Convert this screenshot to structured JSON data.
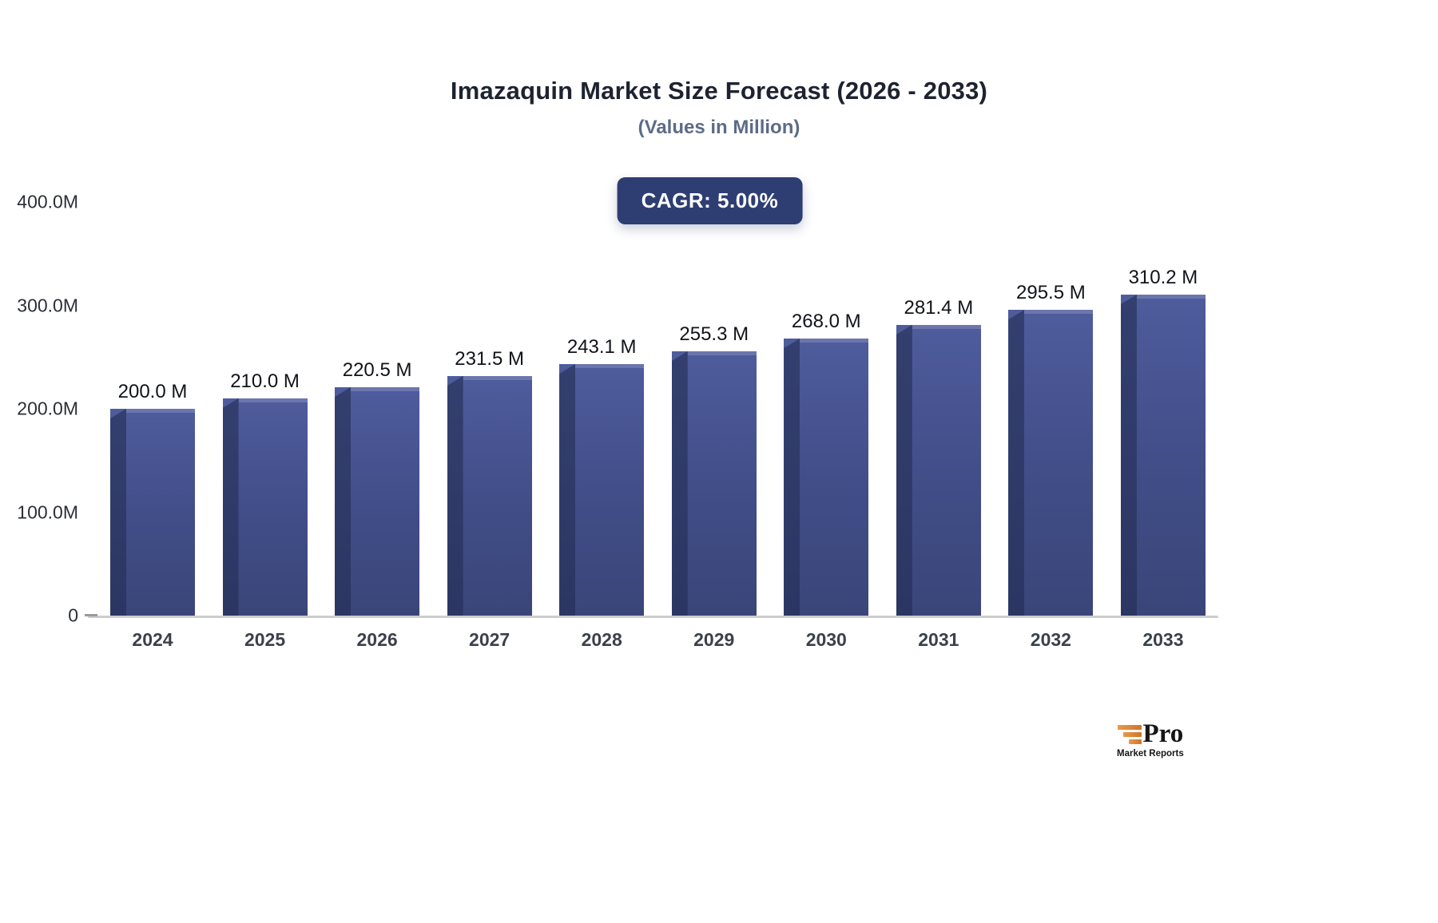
{
  "header": {
    "title": "Imazaquin Market Size Forecast (2026 - 2033)",
    "subtitle": "(Values in Million)",
    "cagr_badge": "CAGR: 5.00%"
  },
  "chart_data": {
    "type": "bar",
    "title": "Imazaquin Market Size Forecast (2026 - 2033)",
    "subtitle": "(Values in Million)",
    "annotation": "CAGR: 5.00%",
    "categories": [
      "2024",
      "2025",
      "2026",
      "2027",
      "2028",
      "2029",
      "2030",
      "2031",
      "2032",
      "2033"
    ],
    "values": [
      200.0,
      210.0,
      220.5,
      231.5,
      243.1,
      255.3,
      268.0,
      281.4,
      295.5,
      310.2
    ],
    "value_labels": [
      "200.0 M",
      "210.0 M",
      "220.5 M",
      "231.5 M",
      "243.1 M",
      "255.3 M",
      "268.0 M",
      "281.4 M",
      "295.5 M",
      "310.2 M"
    ],
    "xlabel": "",
    "ylabel": "",
    "ylim": [
      0,
      400
    ],
    "yticks": [
      "400.0M",
      "300.0M",
      "200.0M",
      "100.0M",
      "0"
    ],
    "grid": false,
    "legend_position": "none",
    "bar_color": "#414d87",
    "bar_side_color": "#2c3663",
    "badge_color": "#2e3e72"
  },
  "logo": {
    "brand": "Pro",
    "tagline": "Market Reports"
  }
}
